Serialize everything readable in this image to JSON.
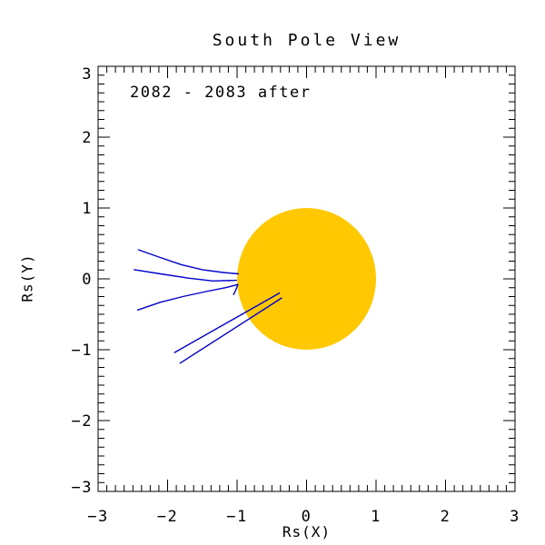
{
  "window": {
    "background": "#FFFFFF"
  },
  "figure": {
    "title": "South Pole View",
    "annotation": "2082 - 2083 after",
    "xlabel": "Rs(X)",
    "ylabel": "Rs(Y)"
  },
  "chart_data": {
    "type": "line",
    "title": "South Pole View",
    "xlabel": "Rs(X)",
    "ylabel": "Rs(Y)",
    "xlim": [
      -3,
      3
    ],
    "ylim": [
      -3,
      3
    ],
    "xticks": [
      -3,
      -2,
      -1,
      0,
      1,
      2,
      3
    ],
    "yticks": [
      -3,
      -2,
      -1,
      0,
      1,
      2,
      3
    ],
    "minor_tick_interval": 0.125,
    "grid": false,
    "legend": null,
    "annotation": {
      "text": "2082 - 2083 after",
      "x": -2.54,
      "y": 2.6
    },
    "axis_color": "#000000",
    "text_color": "#000000",
    "sun_disk": {
      "x": 0,
      "y": 0,
      "radius": 1,
      "color": "#FFC800"
    },
    "trajectory_color": "#0000CD",
    "series": [
      {
        "name": "trajectory-1",
        "points": [
          [
            -2.42,
            0.41
          ],
          [
            -2.1,
            0.3
          ],
          [
            -1.8,
            0.2
          ],
          [
            -1.5,
            0.13
          ],
          [
            -1.2,
            0.09
          ],
          [
            -0.98,
            0.07
          ]
        ]
      },
      {
        "name": "trajectory-2",
        "points": [
          [
            -2.48,
            0.13
          ],
          [
            -2.1,
            0.07
          ],
          [
            -1.7,
            0.01
          ],
          [
            -1.35,
            -0.03
          ],
          [
            -1.01,
            -0.02
          ]
        ]
      },
      {
        "name": "trajectory-3",
        "points": [
          [
            -2.43,
            -0.44
          ],
          [
            -2.1,
            -0.33
          ],
          [
            -1.78,
            -0.25
          ],
          [
            -1.45,
            -0.18
          ],
          [
            -1.15,
            -0.12
          ],
          [
            -0.99,
            -0.08
          ],
          [
            -1.02,
            -0.16
          ],
          [
            -1.05,
            -0.22
          ]
        ]
      },
      {
        "name": "trajectory-4",
        "points": [
          [
            -1.9,
            -1.04
          ],
          [
            -0.39,
            -0.2
          ]
        ]
      },
      {
        "name": "trajectory-5",
        "points": [
          [
            -1.82,
            -1.19
          ],
          [
            -0.36,
            -0.27
          ]
        ]
      }
    ]
  }
}
